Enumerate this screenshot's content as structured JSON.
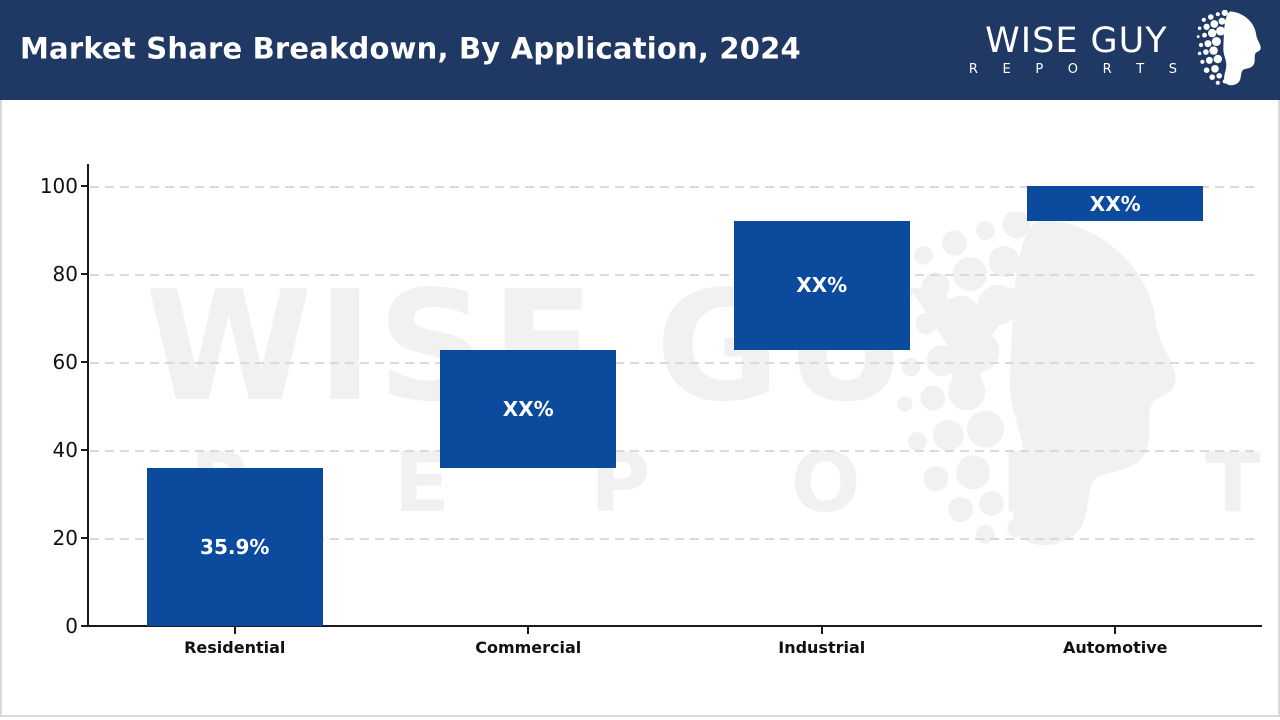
{
  "header": {
    "title": "Market Share Breakdown, By Application, 2024",
    "logo": {
      "line1": "WISE GUY",
      "line2": "REPORTS"
    }
  },
  "watermark": {
    "line1": "WISE GUY",
    "line2": "REPORTS"
  },
  "colors": {
    "header_bg": "#1f3864",
    "bar": "#0b4a9c",
    "grid": "#dadada",
    "axis": "#1a1a1a",
    "watermark": "#f1f1f1",
    "label_text": "#ffffff"
  },
  "chart_data": {
    "type": "bar",
    "variant": "floating-waterfall-columns",
    "title": "Market Share Breakdown, By Application, 2024",
    "categories": [
      "Residential",
      "Commercial",
      "Industrial",
      "Automotive"
    ],
    "segments": [
      {
        "category": "Residential",
        "start": 0,
        "end": 35.9,
        "label": "35.9%"
      },
      {
        "category": "Commercial",
        "start": 35.9,
        "end": 62.7,
        "label": "XX%"
      },
      {
        "category": "Industrial",
        "start": 62.8,
        "end": 92.0,
        "label": "XX%"
      },
      {
        "category": "Automotive",
        "start": 92.0,
        "end": 100.0,
        "label": "XX%"
      }
    ],
    "xlabel": "",
    "ylabel": "",
    "y_ticks": [
      0,
      20,
      40,
      60,
      80,
      100
    ],
    "ylim": [
      0,
      100
    ],
    "grid": "horizontal-dashed",
    "legend": "none"
  }
}
